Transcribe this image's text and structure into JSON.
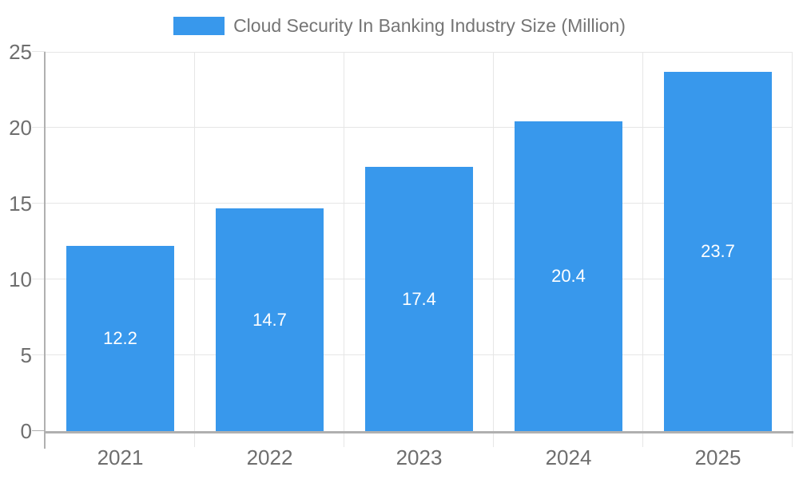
{
  "chart_data": {
    "type": "bar",
    "title": "Cloud Security In Banking Industry Size (Million)",
    "series_name": "Cloud Security In Banking Industry Size (Million)",
    "categories": [
      "2021",
      "2022",
      "2023",
      "2024",
      "2025"
    ],
    "values": [
      12.2,
      14.7,
      17.4,
      20.4,
      23.7
    ],
    "value_labels": [
      "12.2",
      "14.7",
      "17.4",
      "20.4",
      "23.7"
    ],
    "xlabel": "",
    "ylabel": "",
    "ylim": [
      0,
      25
    ],
    "yticks": [
      0,
      5,
      10,
      15,
      20,
      25
    ],
    "grid": true,
    "legend_position": "top",
    "value_label_position": "inside-center",
    "colors": {
      "bar": "#3898EC",
      "grid": "#E6E6E6",
      "axis": "#B0B0B0",
      "tick_label": "#6E6E6E",
      "legend_text": "#757575",
      "value_label": "#FFFFFF",
      "background": "#FFFFFF"
    }
  }
}
